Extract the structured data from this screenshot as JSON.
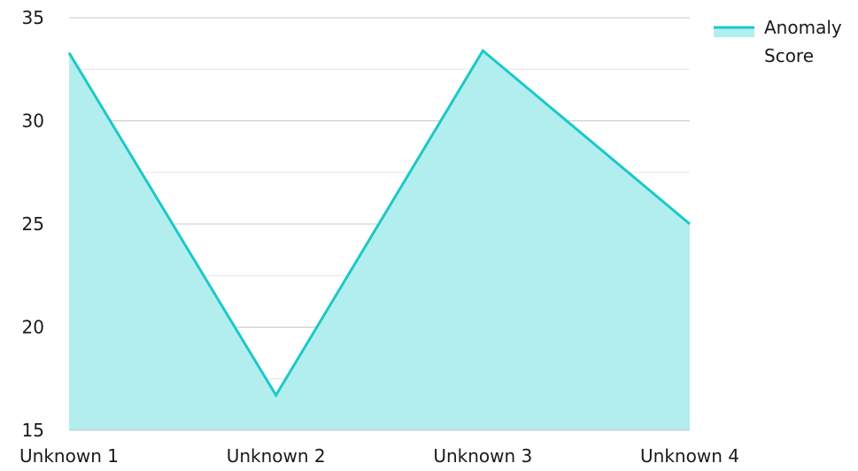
{
  "chart_data": {
    "type": "area",
    "categories": [
      "Unknown 1",
      "Unknown 2",
      "Unknown 3",
      "Unknown 4"
    ],
    "series": [
      {
        "name": "Anomaly Score",
        "values": [
          33.3,
          16.7,
          33.4,
          25.0
        ]
      }
    ],
    "ylim": [
      15,
      35
    ],
    "y_ticks": [
      15,
      20,
      25,
      30,
      35
    ],
    "legend": {
      "position": "top-right",
      "lines": [
        "Anomaly",
        "Score"
      ]
    },
    "grid": true,
    "colors": {
      "line": "#1cc8c8",
      "fill": "#b2eeee",
      "grid_major": "#c8c8c8",
      "grid_minor": "#e6e6e6"
    }
  }
}
